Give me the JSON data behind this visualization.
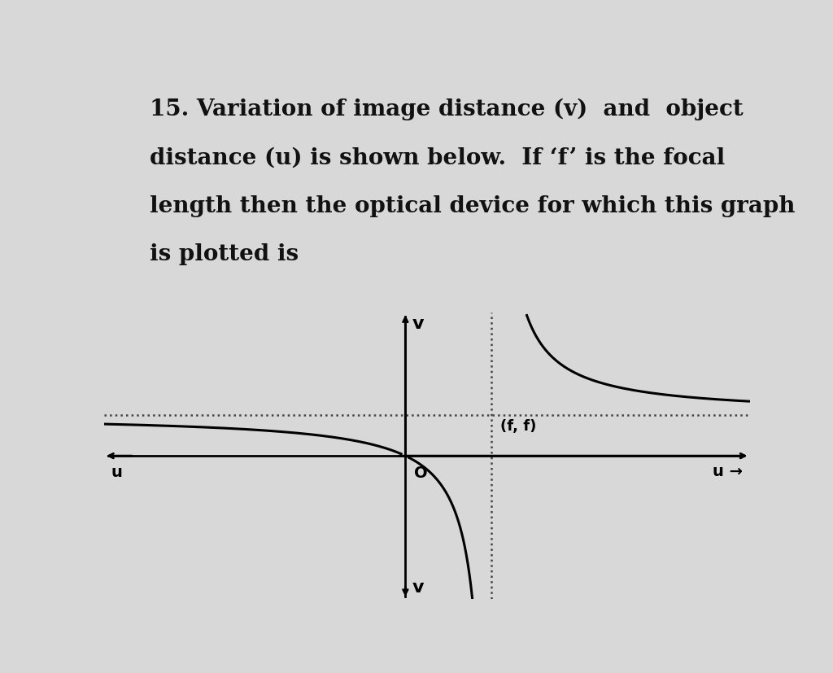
{
  "background_color": "#d8d8d8",
  "curve_color": "#000000",
  "dotted_color": "#444444",
  "axis_color": "#000000",
  "label_O": "O",
  "label_u_left": "u",
  "label_u_right": "u →",
  "label_v_top": "v",
  "label_v_bottom": "v",
  "label_ff": "(f, f)",
  "xlim": [
    -3.5,
    4.0
  ],
  "ylim": [
    -3.5,
    3.5
  ],
  "f": 1.0,
  "title_lines": [
    "15. Variation of image distance (v)  and  object",
    "distance (u) is shown below.  If ‘f’ is the focal",
    "length then the optical device for which this graph",
    "is plotted is"
  ],
  "title_fontsize": 20,
  "title_color": "#111111"
}
